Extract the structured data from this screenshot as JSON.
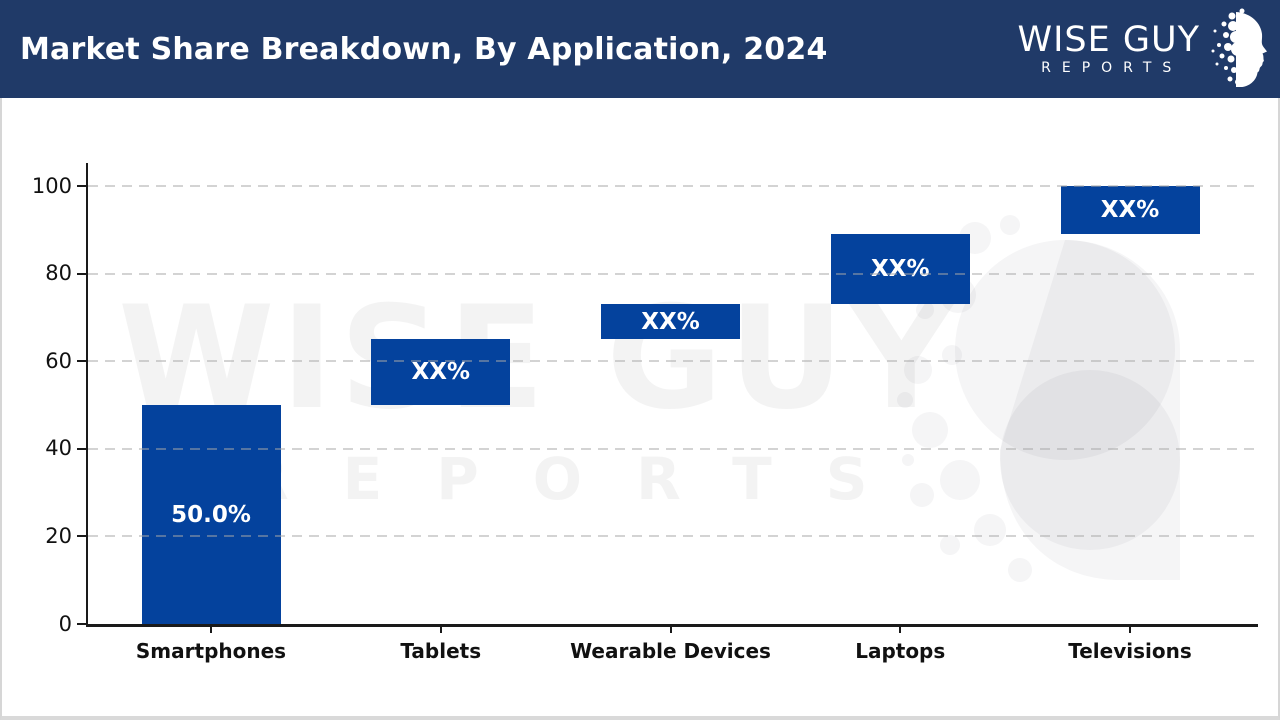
{
  "header": {
    "title": "Market Share Breakdown, By Application, 2024",
    "logo": {
      "line1": "WISE GUY",
      "line2": "REPORTS"
    }
  },
  "watermark": {
    "line1": "WISE GUY",
    "line2": "REPORTS"
  },
  "chart_data": {
    "type": "bar",
    "subtype": "floating-waterfall",
    "title": "Market Share Breakdown, By Application, 2024",
    "categories": [
      "Smartphones",
      "Tablets",
      "Wearable Devices",
      "Laptops",
      "Televisions"
    ],
    "segments": [
      {
        "category": "Smartphones",
        "start": 0,
        "end": 50,
        "label": "50.0%"
      },
      {
        "category": "Tablets",
        "start": 50,
        "end": 65,
        "label": "XX%"
      },
      {
        "category": "Wearable Devices",
        "start": 65,
        "end": 73,
        "label": "XX%"
      },
      {
        "category": "Laptops",
        "start": 73,
        "end": 89,
        "label": "XX%"
      },
      {
        "category": "Televisions",
        "start": 89,
        "end": 100,
        "label": "XX%"
      }
    ],
    "xlabel": "",
    "ylabel": "",
    "ylim": [
      0,
      105
    ],
    "yticks": [
      0,
      20,
      40,
      60,
      80,
      100
    ],
    "grid": true,
    "grid_style": "dashed",
    "legend": null,
    "bar_color": "#04429d",
    "bar_label_color": "#ffffff",
    "header_color": "#203a68"
  }
}
